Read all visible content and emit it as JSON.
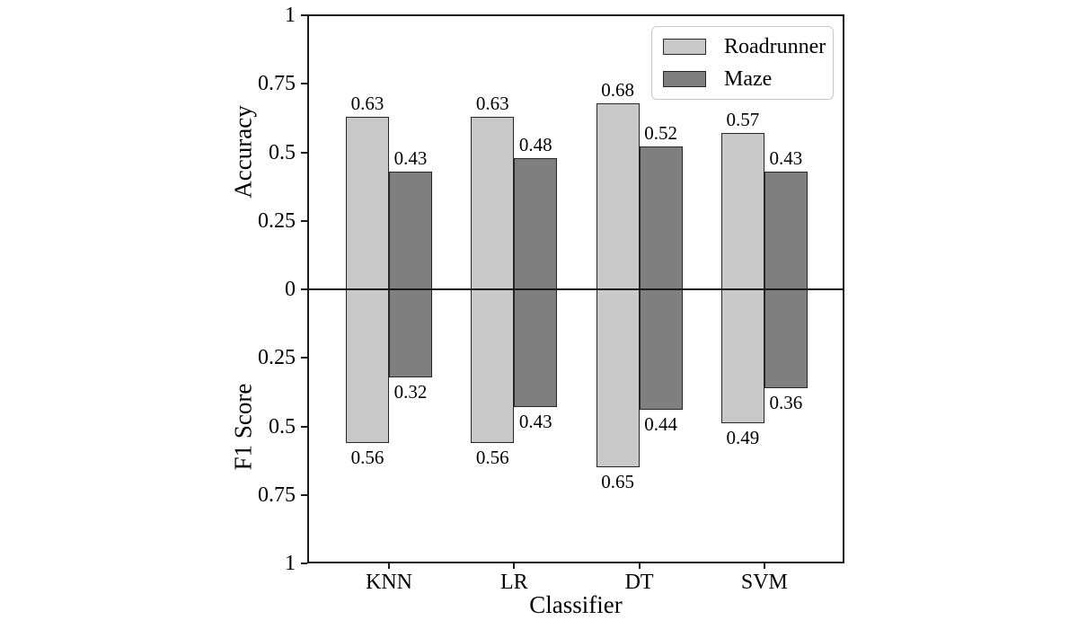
{
  "chart_data": {
    "type": "bar",
    "description": "Mirrored grouped bar chart: Accuracy (upward) and F1 Score (downward) per classifier",
    "categories": [
      "KNN",
      "LR",
      "DT",
      "SVM"
    ],
    "xlabel": "Classifier",
    "grid": false,
    "colors": {
      "roadrunner": "#c9c9c9",
      "maze": "#7f7f7f",
      "bar_edge": "#262626",
      "frame": "#1a1a1a"
    },
    "panels": [
      {
        "ylabel": "Accuracy",
        "direction": "up",
        "ylim": [
          0,
          1
        ],
        "yticks": [
          {
            "value": 0,
            "label": "0"
          },
          {
            "value": 0.25,
            "label": "0.25"
          },
          {
            "value": 0.5,
            "label": "0.5"
          },
          {
            "value": 0.75,
            "label": "0.75"
          },
          {
            "value": 1,
            "label": "1"
          }
        ],
        "series": [
          {
            "name": "Roadrunner",
            "color": "#c9c9c9",
            "values": [
              0.63,
              0.63,
              0.68,
              0.57
            ]
          },
          {
            "name": "Maze",
            "color": "#7f7f7f",
            "values": [
              0.43,
              0.48,
              0.52,
              0.43
            ]
          }
        ]
      },
      {
        "ylabel": "F1 Score",
        "direction": "down",
        "ylim": [
          0,
          1
        ],
        "yticks": [
          {
            "value": 0.25,
            "label": "0.25"
          },
          {
            "value": 0.5,
            "label": "0.5"
          },
          {
            "value": 0.75,
            "label": "0.75"
          },
          {
            "value": 1,
            "label": "1"
          }
        ],
        "series": [
          {
            "name": "Roadrunner",
            "color": "#c9c9c9",
            "values": [
              0.56,
              0.56,
              0.65,
              0.49
            ]
          },
          {
            "name": "Maze",
            "color": "#7f7f7f",
            "values": [
              0.32,
              0.43,
              0.44,
              0.36
            ]
          }
        ]
      }
    ],
    "legend": {
      "position": "top-right",
      "entries": [
        {
          "label": "Roadrunner",
          "color": "#c9c9c9"
        },
        {
          "label": "Maze",
          "color": "#7f7f7f"
        }
      ]
    }
  }
}
